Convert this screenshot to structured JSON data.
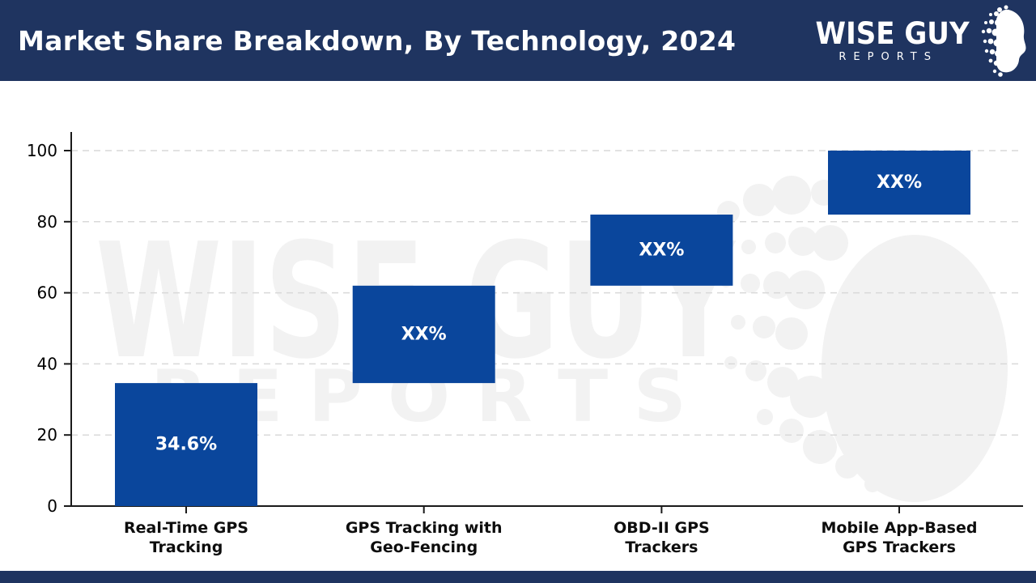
{
  "header": {
    "title": "Market Share Breakdown, By Technology, 2024",
    "logo_line1": "WISE GUY",
    "logo_line2": "REPORTS"
  },
  "watermark": {
    "line1": "WISE GUY",
    "line2": "R E P O R T S"
  },
  "colors": {
    "header_bg": "#1f3460",
    "footer_bg": "#1f3460",
    "bar": "#0a469c",
    "bar_label": "#ffffff",
    "axis": "#1a1a1a",
    "tick_label": "#000000",
    "category_label": "#0d0d0d",
    "grid": "#d9d9d9",
    "watermark": "#f2f2f2"
  },
  "chart_data": {
    "type": "bar",
    "variant": "waterfall",
    "title": "Market Share Breakdown, By Technology, 2024",
    "xlabel": "",
    "ylabel": "",
    "categories": [
      "Real-Time GPS Tracking",
      "GPS Tracking with Geo-Fencing",
      "OBD-II GPS Trackers",
      "Mobile App-Based GPS Trackers"
    ],
    "category_lines": [
      [
        "Real-Time GPS",
        "Tracking"
      ],
      [
        "GPS Tracking with",
        "Geo-Fencing"
      ],
      [
        "OBD-II GPS",
        "Trackers"
      ],
      [
        "Mobile App-Based",
        "GPS Trackers"
      ]
    ],
    "series": [
      {
        "name": "Market Share (%)",
        "segments": [
          {
            "category": "Real-Time GPS Tracking",
            "start": 0,
            "end": 34.6,
            "label": "34.6%"
          },
          {
            "category": "GPS Tracking with Geo-Fencing",
            "start": 34.6,
            "end": 62,
            "label": "XX%"
          },
          {
            "category": "OBD-II GPS Trackers",
            "start": 62,
            "end": 82,
            "label": "XX%"
          },
          {
            "category": "Mobile App-Based GPS Trackers",
            "start": 82,
            "end": 100,
            "label": "XX%"
          }
        ]
      }
    ],
    "yticks": [
      0,
      20,
      40,
      60,
      80,
      100
    ],
    "ylim": [
      0,
      105
    ],
    "grid": "horizontal-dashed",
    "legend": "none"
  }
}
